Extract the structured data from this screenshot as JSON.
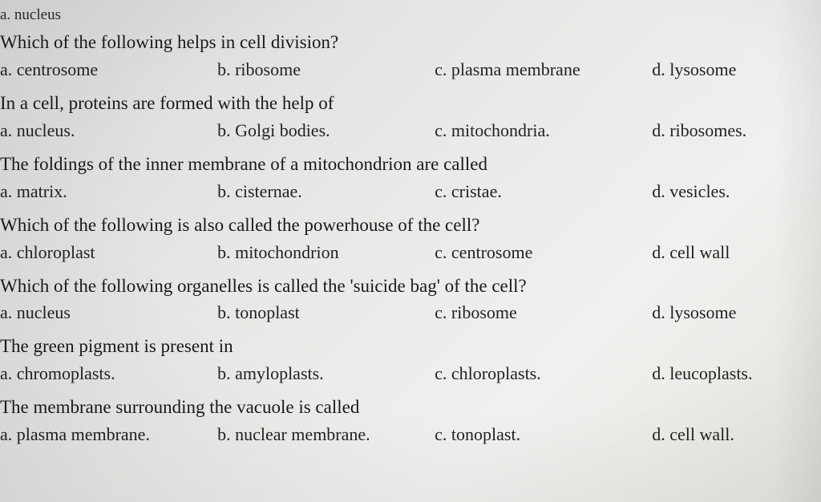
{
  "truncated_top": "a. nucleus",
  "questions": [
    {
      "text": "Which of the following helps in cell division?",
      "options": {
        "a": "a. centrosome",
        "b": "b. ribosome",
        "c": "c. plasma membrane",
        "d": "d. lysosome"
      }
    },
    {
      "text": "In a cell, proteins are formed with the help of",
      "options": {
        "a": "a. nucleus.",
        "b": "b. Golgi bodies.",
        "c": "c. mitochondria.",
        "d": "d. ribosomes."
      }
    },
    {
      "text": "The foldings of the inner membrane of a mitochondrion are called",
      "options": {
        "a": "a. matrix.",
        "b": "b. cisternae.",
        "c": "c. cristae.",
        "d": "d. vesicles."
      }
    },
    {
      "text": "Which of the following is also called the powerhouse of the cell?",
      "options": {
        "a": "a. chloroplast",
        "b": "b. mitochondrion",
        "c": "c. centrosome",
        "d": "d. cell wall"
      }
    },
    {
      "text": "Which of the following organelles is called the 'suicide bag' of the cell?",
      "options": {
        "a": "a. nucleus",
        "b": "b. tonoplast",
        "c": "c. ribosome",
        "d": "d. lysosome"
      }
    },
    {
      "text": "The green pigment is present in",
      "options": {
        "a": "a. chromoplasts.",
        "b": "b. amyloplasts.",
        "c": "c. chloroplasts.",
        "d": "d. leucoplasts."
      }
    },
    {
      "text": "The membrane surrounding the vacuole is called",
      "options": {
        "a": "a. plasma membrane.",
        "b": "b. nuclear membrane.",
        "c": "c. tonoplast.",
        "d": "d. cell wall."
      }
    }
  ]
}
